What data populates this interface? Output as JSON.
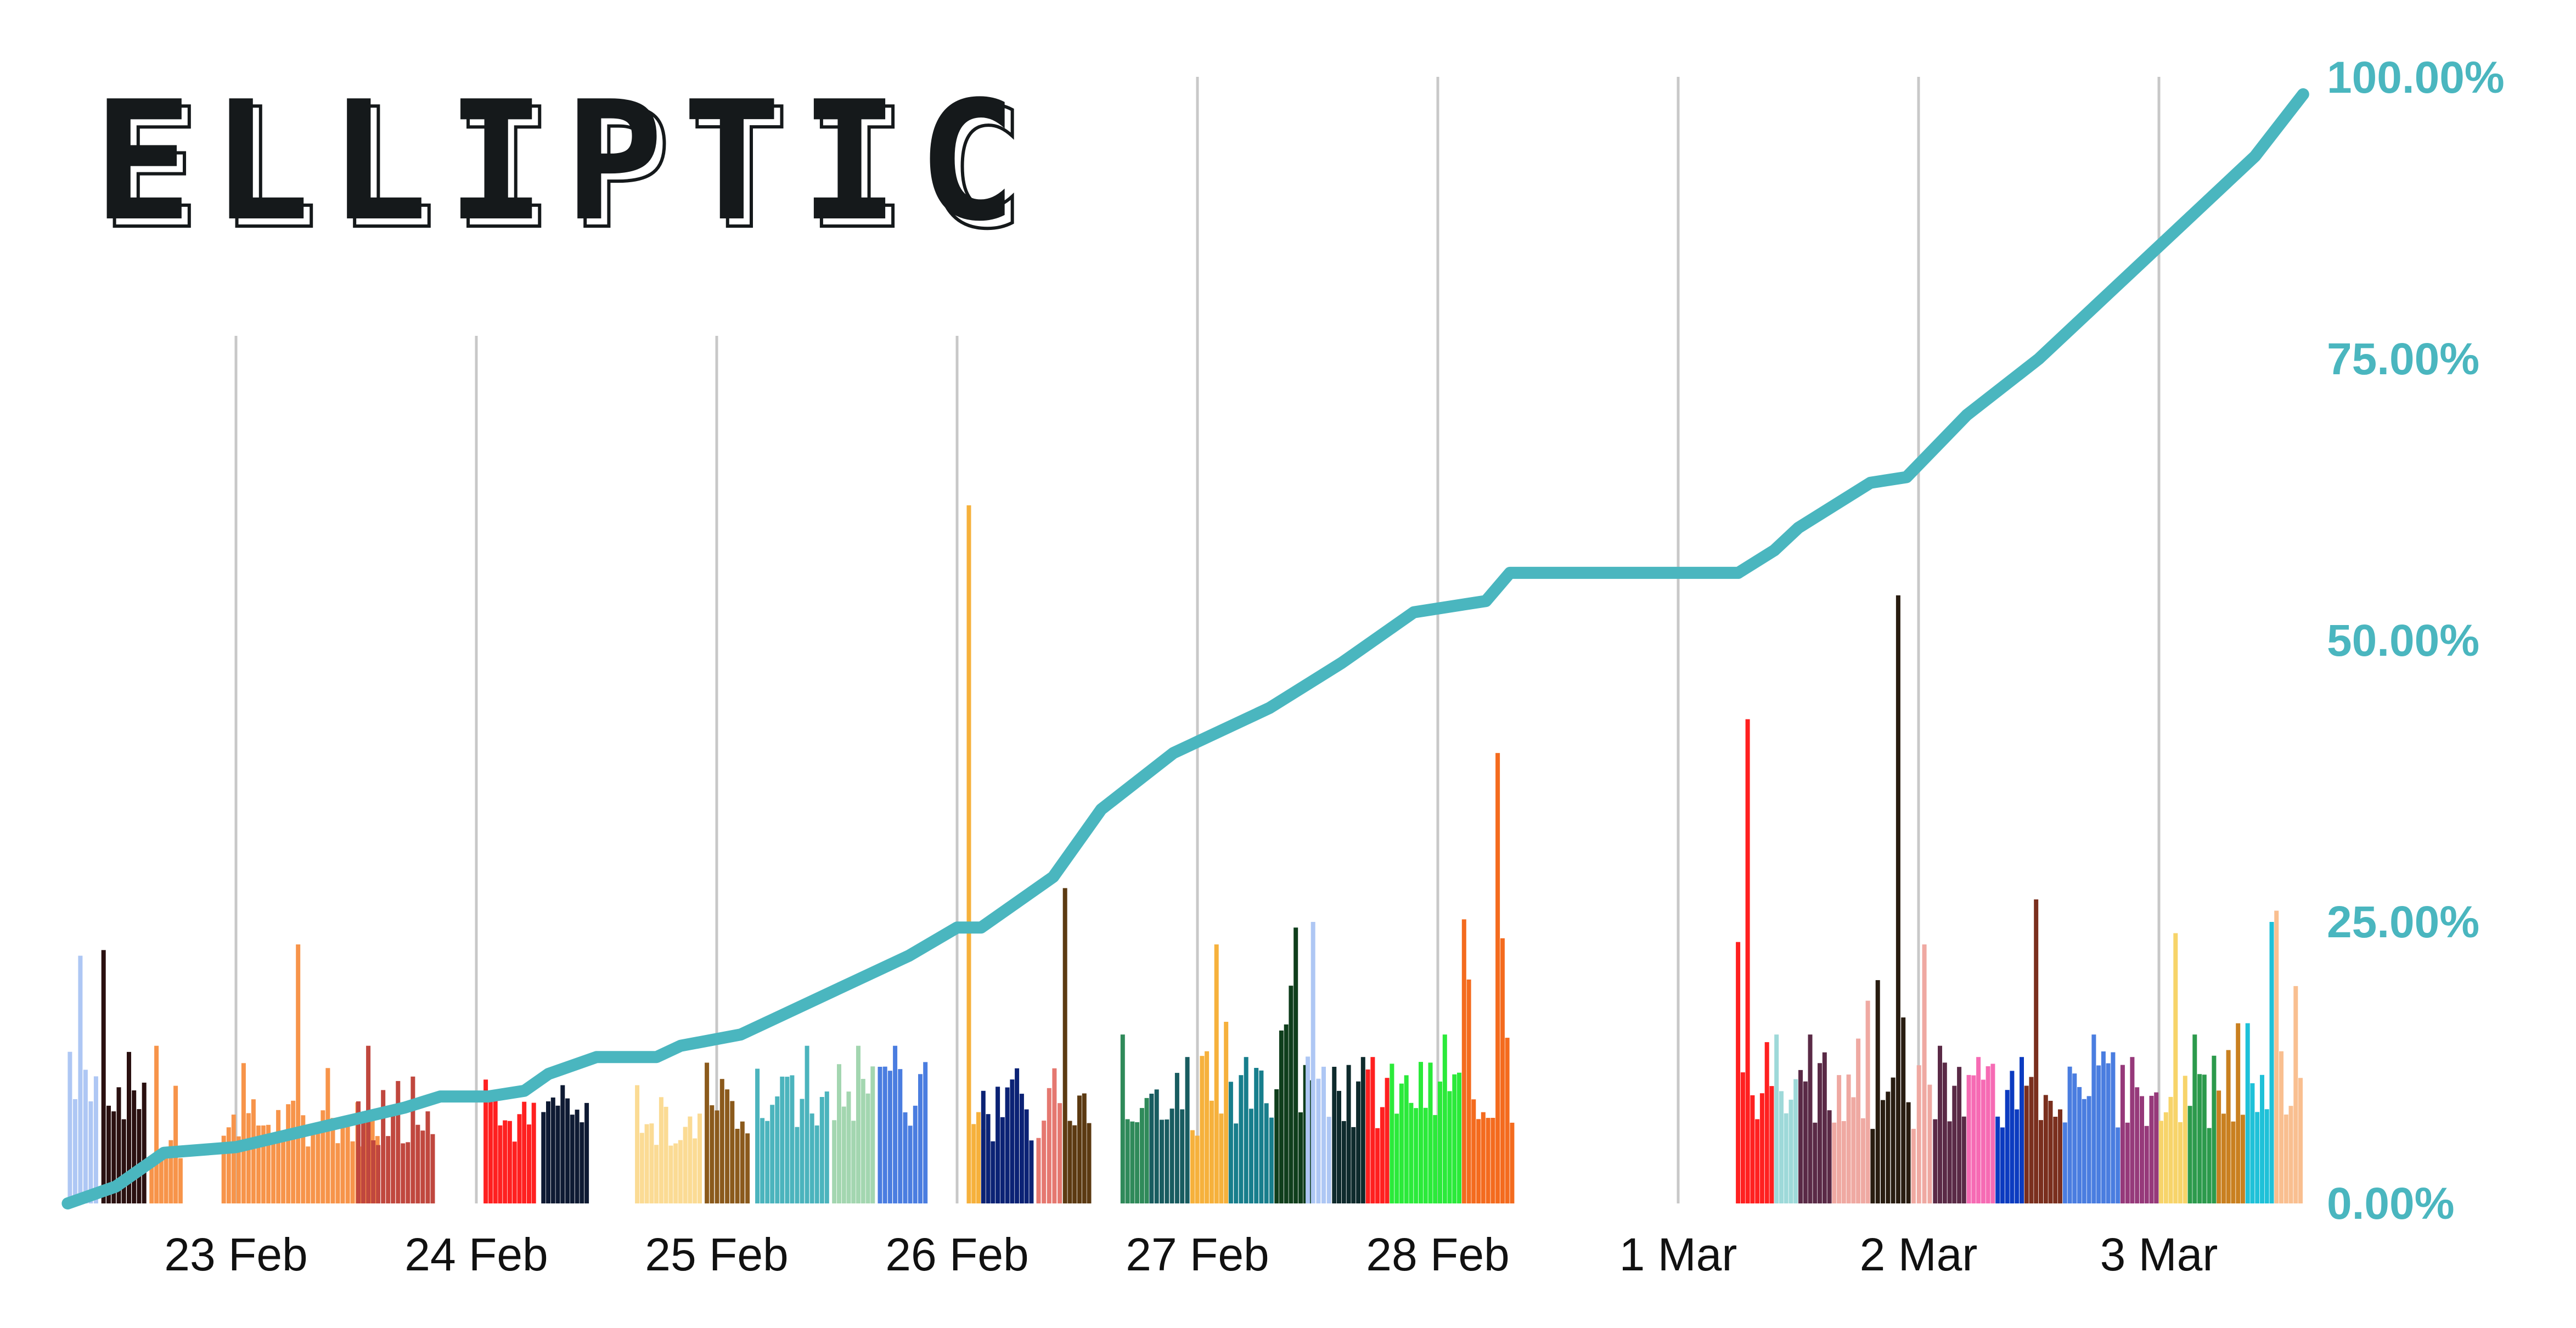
{
  "brand": {
    "logo_text": "ELLIPTIC"
  },
  "colors": {
    "cumulative_line": "#4ab6bf",
    "grid": "#c8c8c8",
    "tick_text": "#111111",
    "right_axis_text": "#4ab6bf",
    "bar_palette": [
      "#aec7f4",
      "#2a1010",
      "#f7944a",
      "#c0473e",
      "#ff2020",
      "#0e1a33",
      "#fbdb94",
      "#8b5a1c",
      "#4bb4bd",
      "#a3d6b0",
      "#4a7de0",
      "#0b2275",
      "#e57870",
      "#5c3a12",
      "#2f8a5a",
      "#185c60",
      "#f6b13c",
      "#177e8c",
      "#0f3e1c",
      "#0e2a2c",
      "#2bea3a",
      "#f46b1e",
      "#9ed9d9",
      "#5a2a46",
      "#efa9a2",
      "#281c10",
      "#f66bb4",
      "#0c3bc0",
      "#7a2f1e",
      "#96397a",
      "#f7d46a",
      "#2c9a4c",
      "#c98020",
      "#1fc1d8",
      "#f9bf90"
    ]
  },
  "chart_data": {
    "type": "bar",
    "x_axis": {
      "tick_labels": [
        "23 Feb",
        "24 Feb",
        "25 Feb",
        "26 Feb",
        "27 Feb",
        "28 Feb",
        "1 Mar",
        "2 Mar",
        "3 Mar"
      ],
      "range_days": [
        -0.7,
        8.6
      ]
    },
    "y_axis_right": {
      "tick_labels": [
        "100.00%",
        "75.00%",
        "50.00%",
        "25.00%",
        "0.00%"
      ],
      "ticks": [
        100,
        75,
        50,
        25,
        0
      ],
      "range": [
        0,
        100
      ],
      "unit": "%"
    },
    "grid": {
      "vertical": true,
      "horizontal": false
    },
    "bar_clusters": [
      {
        "start": -0.7,
        "end": -0.57,
        "max": 22,
        "typical": 12,
        "color_index": 0
      },
      {
        "start": -0.56,
        "end": -0.37,
        "max": 22.5,
        "typical": 13,
        "color_index": 1
      },
      {
        "start": -0.36,
        "end": -0.22,
        "max": 14,
        "typical": 6,
        "color_index": 2
      },
      {
        "start": -0.06,
        "end": 0.6,
        "max": 23,
        "typical": 9,
        "color_index": 2
      },
      {
        "start": 0.5,
        "end": 0.83,
        "max": 14,
        "typical": 9,
        "color_index": 3
      },
      {
        "start": 1.03,
        "end": 1.25,
        "max": 11,
        "typical": 9,
        "color_index": 4
      },
      {
        "start": 1.27,
        "end": 1.47,
        "max": 10.5,
        "typical": 9,
        "color_index": 5
      },
      {
        "start": 1.66,
        "end": 1.94,
        "max": 10.5,
        "typical": 8,
        "color_index": 6
      },
      {
        "start": 1.95,
        "end": 2.14,
        "max": 12.5,
        "typical": 11,
        "color_index": 7
      },
      {
        "start": 2.16,
        "end": 2.47,
        "max": 14,
        "typical": 11,
        "color_index": 8
      },
      {
        "start": 2.48,
        "end": 2.66,
        "max": 14,
        "typical": 12,
        "color_index": 9
      },
      {
        "start": 2.67,
        "end": 2.88,
        "max": 14,
        "typical": 12,
        "color_index": 10
      },
      {
        "start": 3.04,
        "end": 3.12,
        "max": 62,
        "typical": 10,
        "color_index": 16
      },
      {
        "start": 3.1,
        "end": 3.32,
        "max": 12,
        "typical": 10,
        "color_index": 11
      },
      {
        "start": 3.33,
        "end": 3.44,
        "max": 12,
        "typical": 10,
        "color_index": 12
      },
      {
        "start": 3.44,
        "end": 3.56,
        "max": 28,
        "typical": 12,
        "color_index": 13
      },
      {
        "start": 3.68,
        "end": 3.8,
        "max": 15,
        "typical": 12,
        "color_index": 14
      },
      {
        "start": 3.8,
        "end": 3.97,
        "max": 13,
        "typical": 11,
        "color_index": 15
      },
      {
        "start": 3.97,
        "end": 4.13,
        "max": 23,
        "typical": 10,
        "color_index": 16
      },
      {
        "start": 4.13,
        "end": 4.32,
        "max": 13,
        "typical": 12,
        "color_index": 17
      },
      {
        "start": 4.32,
        "end": 4.48,
        "max": 24.5,
        "typical": 12,
        "color_index": 18
      },
      {
        "start": 4.45,
        "end": 4.56,
        "max": 25,
        "typical": 12,
        "color_index": 0
      },
      {
        "start": 4.56,
        "end": 4.7,
        "max": 13,
        "typical": 12,
        "color_index": 19
      },
      {
        "start": 4.7,
        "end": 4.8,
        "max": 13,
        "typical": 12,
        "color_index": 4
      },
      {
        "start": 4.8,
        "end": 5.1,
        "max": 15,
        "typical": 12,
        "color_index": 20
      },
      {
        "start": 5.1,
        "end": 5.32,
        "max": 40,
        "typical": 12,
        "color_index": 21
      },
      {
        "start": 6.24,
        "end": 6.4,
        "max": 43,
        "typical": 12,
        "color_index": 4
      },
      {
        "start": 6.4,
        "end": 6.5,
        "max": 15,
        "typical": 11,
        "color_index": 22
      },
      {
        "start": 6.5,
        "end": 6.64,
        "max": 15,
        "typical": 12,
        "color_index": 23
      },
      {
        "start": 6.64,
        "end": 6.8,
        "max": 18,
        "typical": 12,
        "color_index": 24
      },
      {
        "start": 6.8,
        "end": 6.97,
        "max": 54,
        "typical": 12,
        "color_index": 25
      },
      {
        "start": 6.97,
        "end": 7.06,
        "max": 23,
        "typical": 12,
        "color_index": 24
      },
      {
        "start": 7.06,
        "end": 7.2,
        "max": 14,
        "typical": 12,
        "color_index": 23
      },
      {
        "start": 7.2,
        "end": 7.32,
        "max": 13,
        "typical": 12,
        "color_index": 26
      },
      {
        "start": 7.32,
        "end": 7.44,
        "max": 13,
        "typical": 12,
        "color_index": 27
      },
      {
        "start": 7.44,
        "end": 7.6,
        "max": 27,
        "typical": 12,
        "color_index": 28
      },
      {
        "start": 7.6,
        "end": 7.84,
        "max": 15,
        "typical": 12,
        "color_index": 10
      },
      {
        "start": 7.84,
        "end": 8.0,
        "max": 13,
        "typical": 12,
        "color_index": 29
      },
      {
        "start": 8.0,
        "end": 8.12,
        "max": 24,
        "typical": 11,
        "color_index": 30
      },
      {
        "start": 8.12,
        "end": 8.24,
        "max": 15,
        "typical": 11,
        "color_index": 31
      },
      {
        "start": 8.24,
        "end": 8.36,
        "max": 16,
        "typical": 11,
        "color_index": 32
      },
      {
        "start": 8.36,
        "end": 8.48,
        "max": 25,
        "typical": 13,
        "color_index": 33
      },
      {
        "start": 8.48,
        "end": 8.6,
        "max": 26,
        "typical": 14,
        "color_index": 34
      }
    ],
    "cumulative_series": {
      "name": "",
      "points": [
        [
          -0.7,
          0
        ],
        [
          -0.5,
          1.5
        ],
        [
          -0.3,
          4.5
        ],
        [
          0.0,
          5
        ],
        [
          0.3,
          6.5
        ],
        [
          0.7,
          8.5
        ],
        [
          0.85,
          9.5
        ],
        [
          1.05,
          9.5
        ],
        [
          1.2,
          10
        ],
        [
          1.3,
          11.5
        ],
        [
          1.5,
          13
        ],
        [
          1.75,
          13
        ],
        [
          1.85,
          14
        ],
        [
          2.1,
          15
        ],
        [
          2.2,
          16
        ],
        [
          2.5,
          19
        ],
        [
          2.8,
          22
        ],
        [
          3.0,
          24.5
        ],
        [
          3.1,
          24.5
        ],
        [
          3.4,
          29
        ],
        [
          3.5,
          32
        ],
        [
          3.6,
          35
        ],
        [
          3.9,
          40
        ],
        [
          4.0,
          41
        ],
        [
          4.3,
          44
        ],
        [
          4.6,
          48
        ],
        [
          4.8,
          51
        ],
        [
          4.9,
          52.5
        ],
        [
          5.2,
          53.5
        ],
        [
          5.3,
          56
        ],
        [
          5.6,
          56
        ],
        [
          5.9,
          56
        ],
        [
          6.25,
          56
        ],
        [
          6.4,
          58
        ],
        [
          6.5,
          60
        ],
        [
          6.8,
          64
        ],
        [
          6.95,
          64.5
        ],
        [
          7.2,
          70
        ],
        [
          7.5,
          75
        ],
        [
          7.8,
          81
        ],
        [
          8.1,
          87
        ],
        [
          8.4,
          93
        ],
        [
          8.6,
          98.5
        ]
      ]
    }
  }
}
